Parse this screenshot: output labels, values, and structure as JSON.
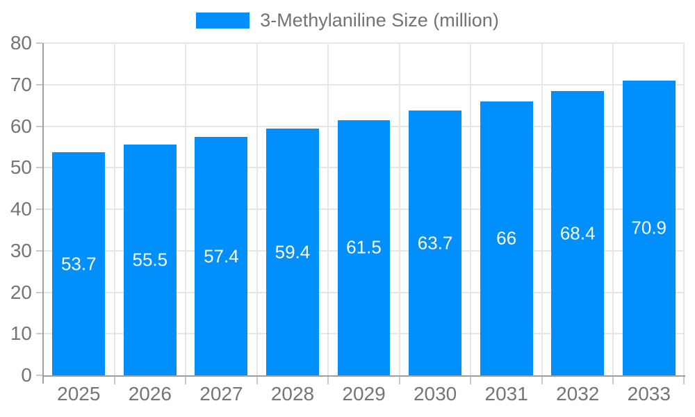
{
  "chart_data": {
    "type": "bar",
    "title": "3-Methylaniline Size (million)",
    "categories": [
      "2025",
      "2026",
      "2027",
      "2028",
      "2029",
      "2030",
      "2031",
      "2032",
      "2033"
    ],
    "values": [
      53.7,
      55.5,
      57.4,
      59.4,
      61.5,
      63.7,
      66,
      68.4,
      70.9
    ],
    "value_labels": [
      "53.7",
      "55.5",
      "57.4",
      "59.4",
      "61.5",
      "63.7",
      "66",
      "68.4",
      "70.9"
    ],
    "xlabel": "",
    "ylabel": "",
    "ylim": [
      0,
      80
    ],
    "yticks": [
      "0",
      "10",
      "20",
      "30",
      "40",
      "50",
      "60",
      "70",
      "80"
    ],
    "grid": true,
    "legend_position": "top",
    "legend_entries": [
      "3-Methylaniline Size (million)"
    ]
  },
  "colors": {
    "bar": "#008FFB",
    "value_label": "#ffffff",
    "gridline": "#e6e6e6",
    "axis_line": "#9e9e9e",
    "tick": "#c9c9c9",
    "axis_label": "#757575",
    "legend_text": "#737373",
    "background": "#ffffff"
  }
}
